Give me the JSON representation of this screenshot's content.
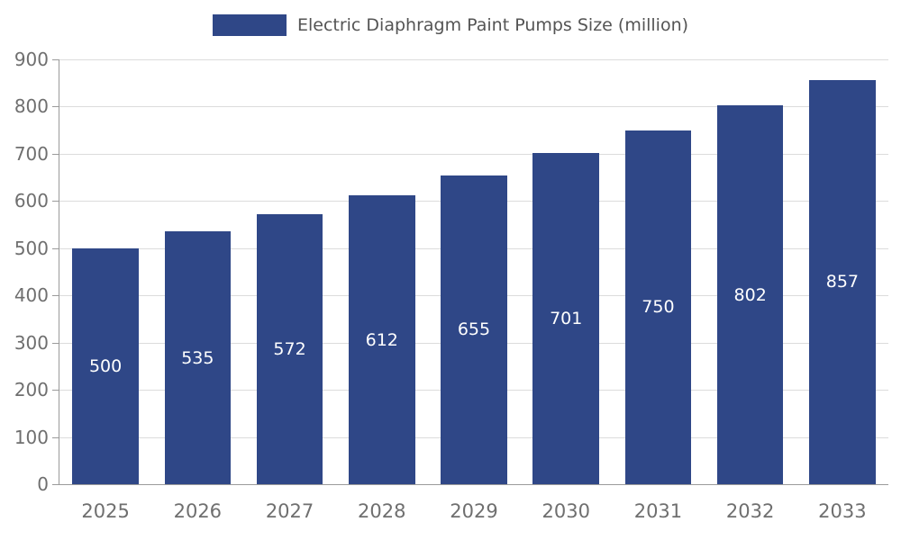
{
  "legend": {
    "label": "Electric Diaphragm Paint Pumps Size (million)"
  },
  "chart_data": {
    "type": "bar",
    "title": "Electric Diaphragm Paint Pumps Size (million)",
    "categories": [
      "2025",
      "2026",
      "2027",
      "2028",
      "2029",
      "2030",
      "2031",
      "2032",
      "2033"
    ],
    "values": [
      500,
      535,
      572,
      612,
      655,
      701,
      750,
      802,
      857
    ],
    "xlabel": "",
    "ylabel": "",
    "ylim": [
      0,
      900
    ],
    "ytick_step": 100,
    "grid": true,
    "legend_position": "top",
    "bar_color": "#2f4787",
    "bar_label_color": "#ffffff",
    "grid_color": "#dcdcdc",
    "axis_color": "#9a9a9a",
    "tick_label_color": "#6f6f6f"
  }
}
